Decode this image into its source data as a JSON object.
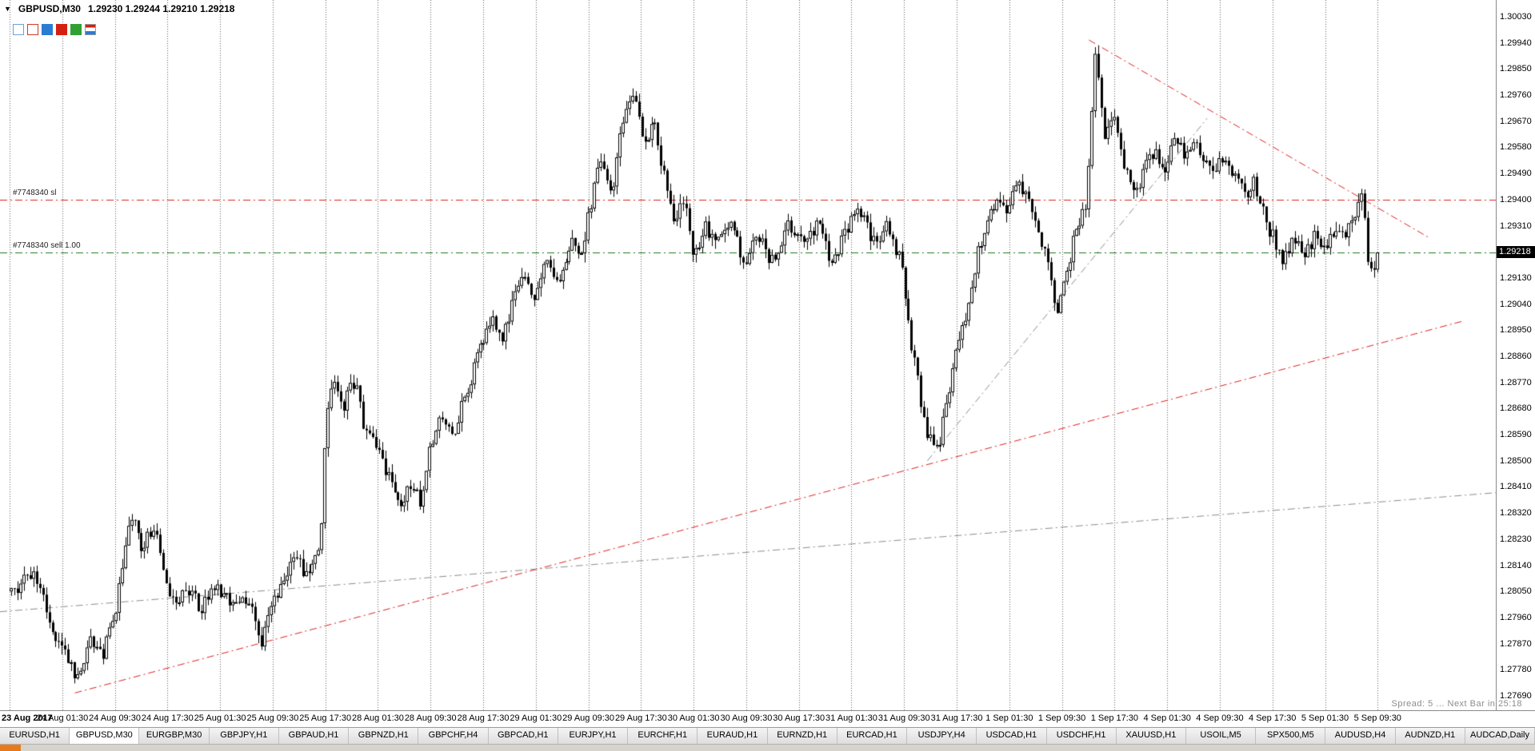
{
  "header": {
    "symbol": "GBPUSD,M30",
    "ohlc": "1.29230 1.29244 1.29210 1.29218"
  },
  "toolbar": {
    "swatches": [
      {
        "name": "white-outline",
        "fill": "#ffffff",
        "border": "#6f9fd8"
      },
      {
        "name": "red-outline",
        "fill": "#ffffff",
        "border": "#d03a2b"
      },
      {
        "name": "blue",
        "fill": "#2b7cd3",
        "border": "#2b7cd3"
      },
      {
        "name": "red",
        "fill": "#d32011",
        "border": "#d32011"
      },
      {
        "name": "green",
        "fill": "#2fa133",
        "border": "#2fa133"
      },
      {
        "name": "striped",
        "fill": "stripe",
        "border": "#999999"
      }
    ]
  },
  "chart_data": {
    "type": "candlestick",
    "symbol": "GBPUSD",
    "timeframe": "M30",
    "ylim": [
      1.2769,
      1.3003
    ],
    "current_price": "1.29218",
    "current_price_value": 1.29218,
    "bar_count": 432,
    "colors": {
      "background": "#ffffff",
      "foreground": "#000000",
      "grid": "#666666",
      "order_sl": "#e02020",
      "order_sell": "#1a7a1a",
      "trend_red": "#e02020",
      "trend_gray": "#8c8c8c"
    },
    "price_axis_labels": [
      "1.30030",
      "1.29940",
      "1.29850",
      "1.29760",
      "1.29670",
      "1.29580",
      "1.29490",
      "1.29400",
      "1.29310",
      "1.29220",
      "1.29130",
      "1.29040",
      "1.28950",
      "1.28860",
      "1.28770",
      "1.28680",
      "1.28590",
      "1.28500",
      "1.28410",
      "1.28320",
      "1.28230",
      "1.28140",
      "1.28050",
      "1.27960",
      "1.27870",
      "1.27780",
      "1.27690"
    ],
    "time_labels": [
      "23 Aug 2017",
      "24 Aug 01:30",
      "24 Aug 09:30",
      "24 Aug 17:30",
      "25 Aug 01:30",
      "25 Aug 09:30",
      "25 Aug 17:30",
      "28 Aug 01:30",
      "28 Aug 09:30",
      "28 Aug 17:30",
      "29 Aug 01:30",
      "29 Aug 09:30",
      "29 Aug 17:30",
      "30 Aug 01:30",
      "30 Aug 09:30",
      "30 Aug 17:30",
      "31 Aug 01:30",
      "31 Aug 09:30",
      "31 Aug 17:30",
      "1 Sep 01:30",
      "1 Sep 09:30",
      "1 Sep 17:30",
      "4 Sep 01:30",
      "4 Sep 09:30",
      "4 Sep 17:30",
      "5 Sep 01:30",
      "5 Sep 09:30"
    ],
    "orders": [
      {
        "label": "#7748340 sl",
        "price": 1.294,
        "color": "#e02020"
      },
      {
        "label": "#7748340 sell 1.00",
        "price": 1.29218,
        "color": "#1a7a1a"
      }
    ],
    "trendlines": [
      {
        "name": "ascending-support-red",
        "x1": 0.05,
        "p1": 1.277,
        "x2": 0.977,
        "p2": 1.2898,
        "color": "#e02020"
      },
      {
        "name": "descending-resistance-red",
        "x1": 0.728,
        "p1": 1.2995,
        "x2": 0.955,
        "p2": 1.2927,
        "color": "#e02020"
      },
      {
        "name": "steep-gray",
        "x1": 0.62,
        "p1": 1.285,
        "x2": 0.807,
        "p2": 1.2968,
        "color": "#8c8c8c"
      },
      {
        "name": "shallow-gray",
        "x1": 0.0,
        "p1": 1.2798,
        "x2": 1.0,
        "p2": 1.2839,
        "color": "#8c8c8c"
      }
    ],
    "status_text": "Spread: 5 ... Next Bar in 25:18",
    "price_path": [
      [
        0.0,
        1.2805
      ],
      [
        0.015,
        1.2812
      ],
      [
        0.033,
        1.279
      ],
      [
        0.048,
        1.2776
      ],
      [
        0.059,
        1.279
      ],
      [
        0.066,
        1.2782
      ],
      [
        0.077,
        1.28
      ],
      [
        0.088,
        1.2831
      ],
      [
        0.095,
        1.282
      ],
      [
        0.106,
        1.2827
      ],
      [
        0.117,
        1.28
      ],
      [
        0.128,
        1.2806
      ],
      [
        0.139,
        1.2799
      ],
      [
        0.15,
        1.2807
      ],
      [
        0.161,
        1.28
      ],
      [
        0.176,
        1.2803
      ],
      [
        0.183,
        1.2786
      ],
      [
        0.191,
        1.28
      ],
      [
        0.202,
        1.2813
      ],
      [
        0.209,
        1.2818
      ],
      [
        0.216,
        1.281
      ],
      [
        0.223,
        1.2817
      ],
      [
        0.227,
        1.2822
      ],
      [
        0.231,
        1.2868
      ],
      [
        0.236,
        1.288
      ],
      [
        0.243,
        1.2868
      ],
      [
        0.251,
        1.2878
      ],
      [
        0.258,
        1.2862
      ],
      [
        0.267,
        1.2855
      ],
      [
        0.277,
        1.2843
      ],
      [
        0.284,
        1.2834
      ],
      [
        0.292,
        1.2842
      ],
      [
        0.299,
        1.2836
      ],
      [
        0.306,
        1.2852
      ],
      [
        0.315,
        1.2866
      ],
      [
        0.324,
        1.2859
      ],
      [
        0.333,
        1.2874
      ],
      [
        0.343,
        1.2888
      ],
      [
        0.352,
        1.29
      ],
      [
        0.359,
        1.289
      ],
      [
        0.368,
        1.2906
      ],
      [
        0.375,
        1.2916
      ],
      [
        0.382,
        1.2904
      ],
      [
        0.392,
        1.2921
      ],
      [
        0.401,
        1.291
      ],
      [
        0.409,
        1.2926
      ],
      [
        0.416,
        1.2919
      ],
      [
        0.425,
        1.294
      ],
      [
        0.432,
        1.2954
      ],
      [
        0.44,
        1.2944
      ],
      [
        0.447,
        1.2966
      ],
      [
        0.456,
        1.2976
      ],
      [
        0.463,
        1.2958
      ],
      [
        0.47,
        1.2969
      ],
      [
        0.478,
        1.2948
      ],
      [
        0.485,
        1.293
      ],
      [
        0.492,
        1.2941
      ],
      [
        0.5,
        1.292
      ],
      [
        0.507,
        1.2931
      ],
      [
        0.517,
        1.2925
      ],
      [
        0.526,
        1.2931
      ],
      [
        0.536,
        1.2919
      ],
      [
        0.547,
        1.2926
      ],
      [
        0.557,
        1.2919
      ],
      [
        0.568,
        1.2931
      ],
      [
        0.579,
        1.2924
      ],
      [
        0.59,
        1.2931
      ],
      [
        0.601,
        1.2919
      ],
      [
        0.612,
        1.293
      ],
      [
        0.621,
        1.2936
      ],
      [
        0.632,
        1.2924
      ],
      [
        0.642,
        1.2931
      ],
      [
        0.651,
        1.2918
      ],
      [
        0.656,
        1.2899
      ],
      [
        0.663,
        1.2879
      ],
      [
        0.67,
        1.286
      ],
      [
        0.678,
        1.2853
      ],
      [
        0.685,
        1.287
      ],
      [
        0.692,
        1.2891
      ],
      [
        0.7,
        1.2901
      ],
      [
        0.707,
        1.2921
      ],
      [
        0.714,
        1.2931
      ],
      [
        0.722,
        1.2941
      ],
      [
        0.729,
        1.2934
      ],
      [
        0.736,
        1.2946
      ],
      [
        0.744,
        1.2939
      ],
      [
        0.751,
        1.2929
      ],
      [
        0.758,
        1.2918
      ],
      [
        0.766,
        1.2901
      ],
      [
        0.773,
        1.2916
      ],
      [
        0.78,
        1.2931
      ],
      [
        0.788,
        1.2941
      ],
      [
        0.793,
        1.2991
      ],
      [
        0.8,
        1.2962
      ],
      [
        0.807,
        1.2971
      ],
      [
        0.815,
        1.295
      ],
      [
        0.822,
        1.2941
      ],
      [
        0.829,
        1.2951
      ],
      [
        0.837,
        1.2956
      ],
      [
        0.844,
        1.295
      ],
      [
        0.851,
        1.2961
      ],
      [
        0.859,
        1.2955
      ],
      [
        0.866,
        1.2961
      ],
      [
        0.873,
        1.2955
      ],
      [
        0.881,
        1.295
      ],
      [
        0.888,
        1.2956
      ],
      [
        0.895,
        1.2949
      ],
      [
        0.903,
        1.294
      ],
      [
        0.91,
        1.2946
      ],
      [
        0.917,
        1.2935
      ],
      [
        0.925,
        1.2925
      ],
      [
        0.932,
        1.2919
      ],
      [
        0.939,
        1.2926
      ],
      [
        0.947,
        1.292
      ],
      [
        0.954,
        1.2929
      ],
      [
        0.961,
        1.2924
      ],
      [
        0.969,
        1.2931
      ],
      [
        0.976,
        1.2925
      ],
      [
        0.983,
        1.2936
      ],
      [
        0.989,
        1.2941
      ],
      [
        0.993,
        1.2919
      ],
      [
        0.997,
        1.2914
      ],
      [
        1.0,
        1.29218
      ]
    ]
  },
  "tabs": {
    "items": [
      {
        "label": "EURUSD,H1",
        "active": false
      },
      {
        "label": "GBPUSD,M30",
        "active": true
      },
      {
        "label": "EURGBP,M30",
        "active": false
      },
      {
        "label": "GBPJPY,H1",
        "active": false
      },
      {
        "label": "GBPAUD,H1",
        "active": false
      },
      {
        "label": "GBPNZD,H1",
        "active": false
      },
      {
        "label": "GBPCHF,H4",
        "active": false
      },
      {
        "label": "GBPCAD,H1",
        "active": false
      },
      {
        "label": "EURJPY,H1",
        "active": false
      },
      {
        "label": "EURCHF,H1",
        "active": false
      },
      {
        "label": "EURAUD,H1",
        "active": false
      },
      {
        "label": "EURNZD,H1",
        "active": false
      },
      {
        "label": "EURCAD,H1",
        "active": false
      },
      {
        "label": "USDJPY,H4",
        "active": false
      },
      {
        "label": "USDCAD,H1",
        "active": false
      },
      {
        "label": "USDCHF,H1",
        "active": false
      },
      {
        "label": "XAUUSD,H1",
        "active": false
      },
      {
        "label": "USOIL,M5",
        "active": false
      },
      {
        "label": "SPX500,M5",
        "active": false
      },
      {
        "label": "AUDUSD,H4",
        "active": false
      },
      {
        "label": "AUDNZD,H1",
        "active": false
      },
      {
        "label": "AUDCAD,Daily",
        "active": false
      }
    ]
  }
}
